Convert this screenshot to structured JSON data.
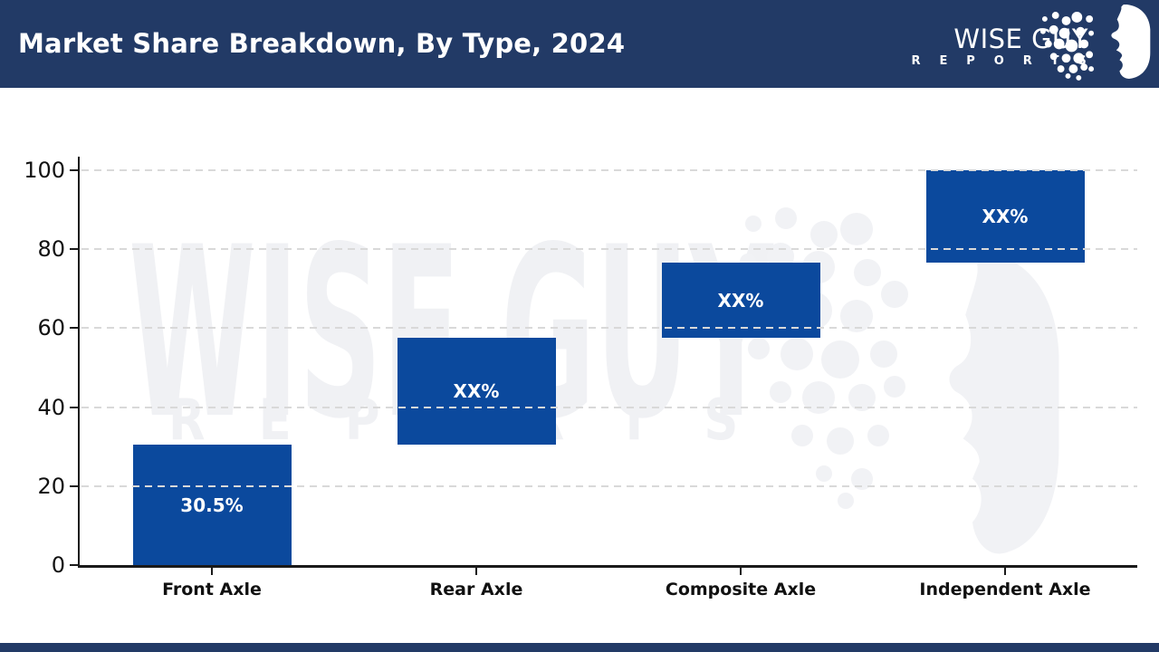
{
  "header": {
    "title": "Market Share Breakdown, By Type, 2024",
    "logo": {
      "name": "WISE GUY",
      "sub": "R E P O R T S"
    }
  },
  "watermark": {
    "line1": "WISE GUY",
    "line2": "R E P O R T S"
  },
  "chart_data": {
    "type": "bar",
    "subtype": "waterfall",
    "title": "Market Share Breakdown, By Type, 2024",
    "categories": [
      "Front Axle",
      "Rear Axle",
      "Composite Axle",
      "Independent Axle"
    ],
    "segments": [
      {
        "category": "Front Axle",
        "start": 0,
        "end": 30.5,
        "label": "30.5%"
      },
      {
        "category": "Rear Axle",
        "start": 30.5,
        "end": 57.5,
        "label": "XX%"
      },
      {
        "category": "Composite Axle",
        "start": 57.5,
        "end": 76.5,
        "label": "XX%"
      },
      {
        "category": "Independent Axle",
        "start": 76.5,
        "end": 100,
        "label": "XX%"
      }
    ],
    "yticks": [
      0,
      20,
      40,
      60,
      80,
      100
    ],
    "ylim": [
      0,
      103
    ],
    "grid": "horizontal-dashed",
    "legend": "none",
    "xlabel": "",
    "ylabel": ""
  },
  "colors": {
    "header_bg": "#223A66",
    "footer_bg": "#223A66",
    "bar": "#0B499D",
    "grid": "#d9d9d9",
    "axis": "#1a1a1a",
    "watermark": "#f0f1f4",
    "bar_label_text": "#ffffff",
    "title_text": "#ffffff"
  }
}
